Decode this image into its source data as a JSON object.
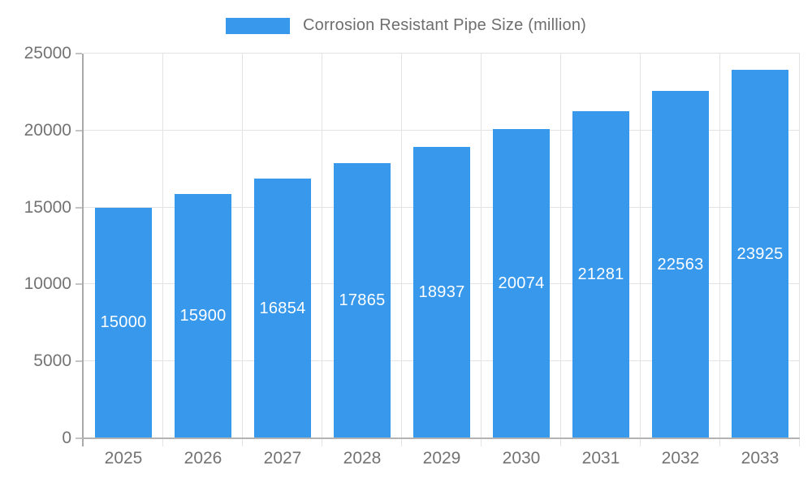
{
  "chart_data": {
    "type": "bar",
    "title": "",
    "legend": {
      "label": "Corrosion Resistant Pipe Size (million)",
      "position": "top-center"
    },
    "categories": [
      "2025",
      "2026",
      "2027",
      "2028",
      "2029",
      "2030",
      "2031",
      "2032",
      "2033"
    ],
    "values": [
      15000,
      15900,
      16854,
      17865,
      18937,
      20074,
      21281,
      22563,
      23925
    ],
    "value_labels_shown": true,
    "value_label_position": "inside-center",
    "xlabel": "",
    "ylabel": "",
    "ylim": [
      0,
      25000
    ],
    "yticks": [
      0,
      5000,
      10000,
      15000,
      20000,
      25000
    ],
    "grid": true,
    "colors": {
      "bar": "#3899EC",
      "value_label": "#ffffff",
      "axis_text": "#737373",
      "legend_text": "#6e6e6e",
      "gridline": "#e3e3e3",
      "axis_line": "#b0b0b0",
      "background": "#ffffff"
    }
  }
}
